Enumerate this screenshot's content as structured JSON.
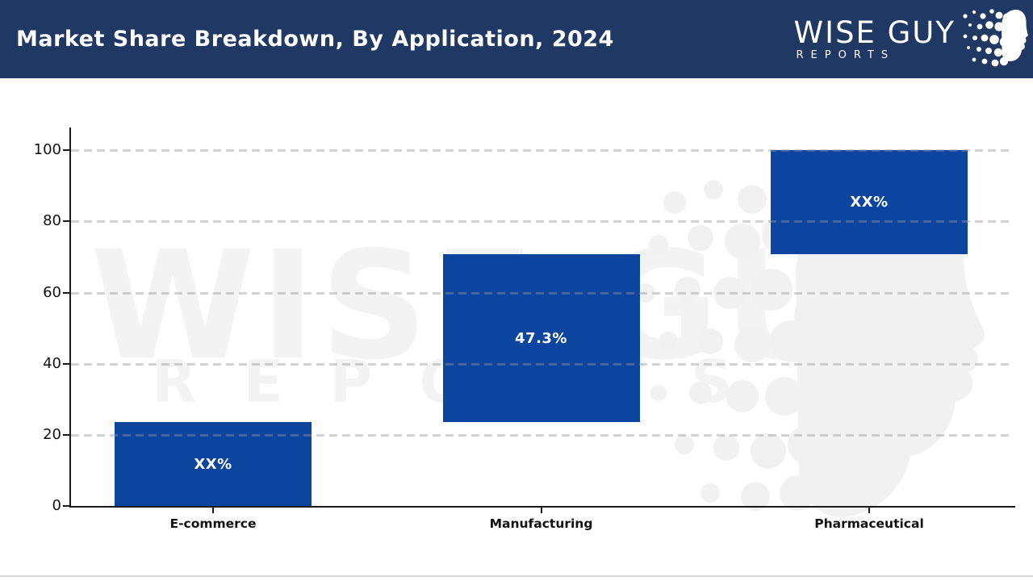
{
  "header": {
    "title": "Market Share Breakdown, By Application, 2024",
    "logo_line1": "WISE GUY",
    "logo_line2": "REPORTS"
  },
  "watermark": {
    "line1": "WISE GUY",
    "line2": "REPORTS"
  },
  "chart_data": {
    "type": "bar",
    "subtype": "waterfall",
    "title": "Market Share Breakdown, By Application, 2024",
    "categories": [
      "E-commerce",
      "Manufacturing",
      "Pharmaceutical"
    ],
    "segments": [
      {
        "category": "E-commerce",
        "label": "XX%",
        "start": 0,
        "end": 23.5
      },
      {
        "category": "Manufacturing",
        "label": "47.3%",
        "start": 23.5,
        "end": 70.8
      },
      {
        "category": "Pharmaceutical",
        "label": "XX%",
        "start": 70.8,
        "end": 100
      }
    ],
    "yticks": [
      0,
      20,
      40,
      60,
      80,
      100
    ],
    "ylim": [
      0,
      106.4
    ],
    "grid": "dashed-horizontal",
    "legend": "none",
    "xlabel": "",
    "ylabel": ""
  },
  "colors": {
    "header_bg": "#1f3864",
    "bar": "#0b459f",
    "axis": "#1a1a1a",
    "gridline": "#dcdcdc",
    "watermark": "#f2f2f2",
    "footer_line": "#d9d9d9",
    "title_text": "#ffffff",
    "tick_text": "#111111"
  }
}
